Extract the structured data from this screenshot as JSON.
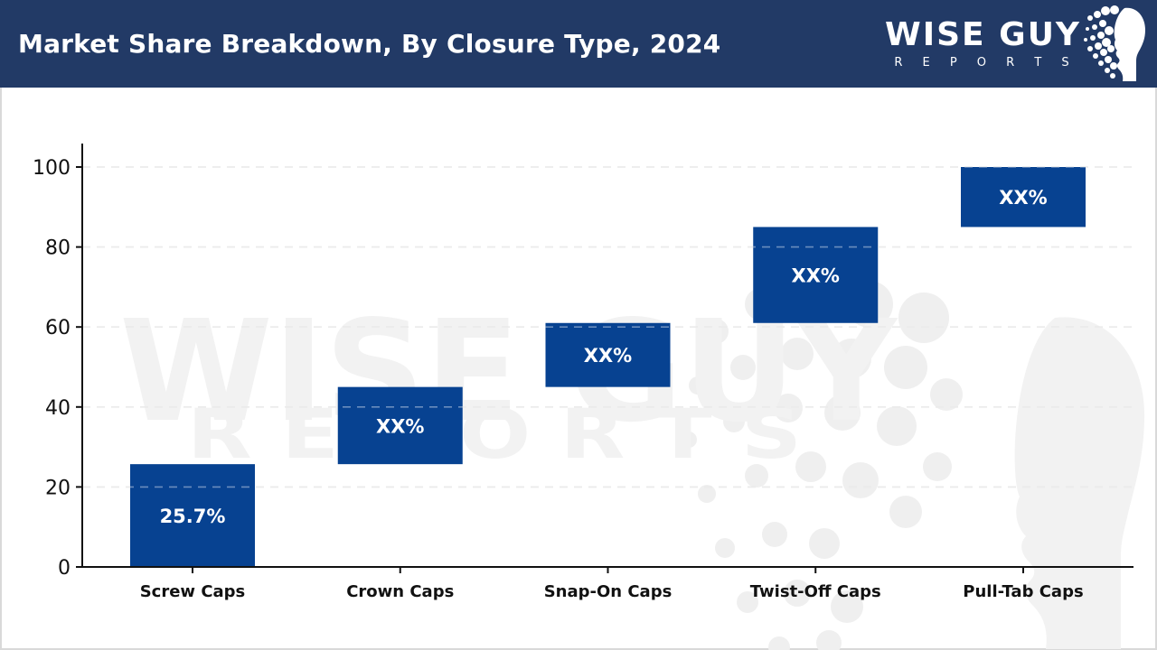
{
  "header": {
    "title": "Market Share Breakdown, By Closure Type, 2024",
    "bg_color": "#223A66",
    "brand": {
      "line1": "WISE GUY",
      "line2": "R E P O R T S"
    }
  },
  "watermark": {
    "line1": "WISE GUY",
    "line2": "R E P O R T S"
  },
  "chart_data": {
    "type": "bar",
    "subtype": "waterfall-floating-bars",
    "title": "Market Share Breakdown, By Closure Type, 2024",
    "categories": [
      "Screw Caps",
      "Crown Caps",
      "Snap-On Caps",
      "Twist-Off Caps",
      "Pull-Tab Caps"
    ],
    "segments": [
      {
        "category": "Screw Caps",
        "start": 0,
        "end": 25.7,
        "label": "25.7%"
      },
      {
        "category": "Crown Caps",
        "start": 25.7,
        "end": 45,
        "label": "XX%"
      },
      {
        "category": "Snap-On Caps",
        "start": 45,
        "end": 61,
        "label": "XX%"
      },
      {
        "category": "Twist-Off Caps",
        "start": 61,
        "end": 85,
        "label": "XX%"
      },
      {
        "category": "Pull-Tab Caps",
        "start": 85,
        "end": 100,
        "label": "XX%"
      }
    ],
    "ylabel": "",
    "xlabel": "",
    "ylim": [
      0,
      100
    ],
    "yticks": [
      0,
      20,
      40,
      60,
      80,
      100
    ],
    "grid": "horizontal-dashed",
    "legend": "none",
    "bar_color": "#074291",
    "label_color": "#ffffff",
    "axis_color": "#111111",
    "grid_color": "#dedede"
  }
}
